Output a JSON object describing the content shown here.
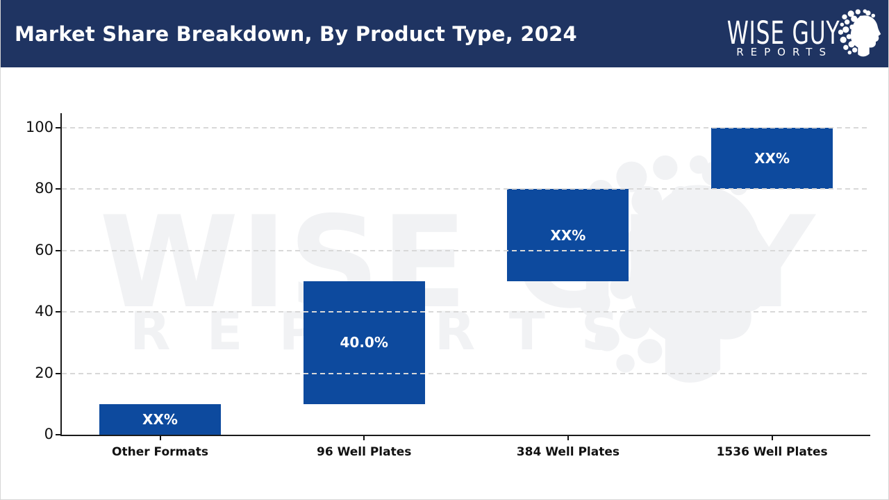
{
  "header": {
    "title": "Market Share Breakdown, By Product Type, 2024",
    "logo": {
      "line1": "WISE GUY",
      "line2": "REPORTS"
    }
  },
  "watermark": {
    "line1": "WISE GUY",
    "line2": "REPORTS"
  },
  "chart_data": {
    "type": "bar",
    "subtype": "floating-waterfall",
    "title": "Market Share Breakdown, By Product Type, 2024",
    "categories": [
      "Other Formats",
      "96 Well Plates",
      "384 Well Plates",
      "1536 Well Plates"
    ],
    "bars": [
      {
        "category": "Other Formats",
        "label": "XX%",
        "start": 0,
        "end": 10
      },
      {
        "category": "96 Well Plates",
        "label": "40.0%",
        "start": 10,
        "end": 50
      },
      {
        "category": "384 Well Plates",
        "label": "XX%",
        "start": 50,
        "end": 80
      },
      {
        "category": "1536 Well Plates",
        "label": "XX%",
        "start": 80,
        "end": 100
      }
    ],
    "yticks": [
      0,
      20,
      40,
      60,
      80,
      100
    ],
    "ylim": [
      0,
      105
    ],
    "xlabel": "",
    "ylabel": "",
    "grid": "horizontal-dashed",
    "legend": "none",
    "bar_color": "#0d4a9e",
    "bar_label_color": "#ffffff",
    "header_color": "#1f3462",
    "gridline_color": "#d8d8d8",
    "watermark_color": "#f1f2f4"
  }
}
